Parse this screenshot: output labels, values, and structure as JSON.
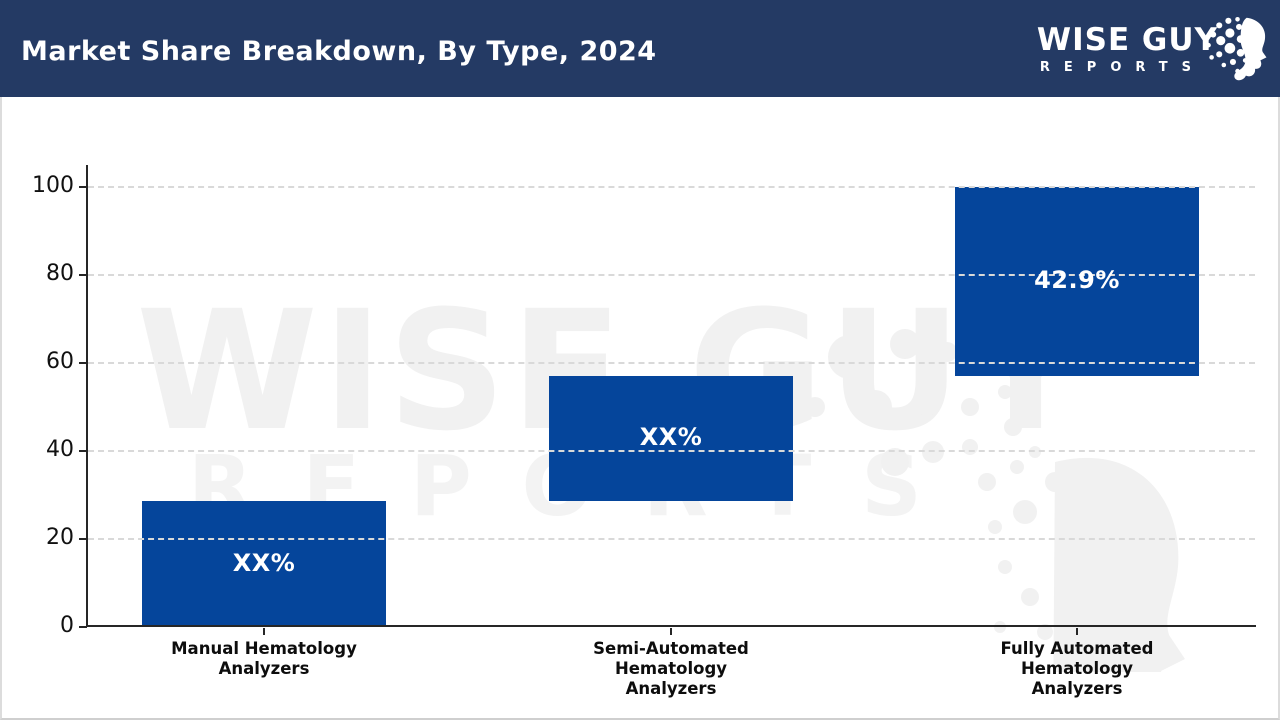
{
  "header": {
    "title": "Market Share Breakdown, By Type, 2024",
    "logo": {
      "brand": "WISE GUY",
      "sub": "REPORTS"
    }
  },
  "watermark": {
    "brand": "WISE GUY",
    "sub": "REPORTS"
  },
  "chart_data": {
    "type": "bar",
    "subtype": "floating-waterfall-segments",
    "title": "Market Share Breakdown, By Type, 2024",
    "unit": "%",
    "categories": [
      "Manual Hematology\nAnalyzers",
      "Semi-Automated\nHematology\nAnalyzers",
      "Fully Automated\nHematology\nAnalyzers"
    ],
    "bars": [
      {
        "label": "XX%",
        "start": 0,
        "end": 28.6
      },
      {
        "label": "XX%",
        "start": 28.6,
        "end": 57.1
      },
      {
        "label": "42.9%",
        "start": 57.1,
        "end": 100
      }
    ],
    "yticks": [
      0,
      20,
      40,
      60,
      80,
      100
    ],
    "ylim": [
      0,
      105
    ],
    "grid": {
      "axis": "y",
      "style": "dashed",
      "position": "above-bars"
    },
    "legend": "none",
    "bar_color": "#05459b",
    "value_label_color": "#ffffff"
  },
  "colors": {
    "header_bg": "#243a64",
    "bar": "#05459b",
    "axis": "#262626",
    "grid": "#d9d9d9",
    "watermark": "#f1f1f1"
  }
}
